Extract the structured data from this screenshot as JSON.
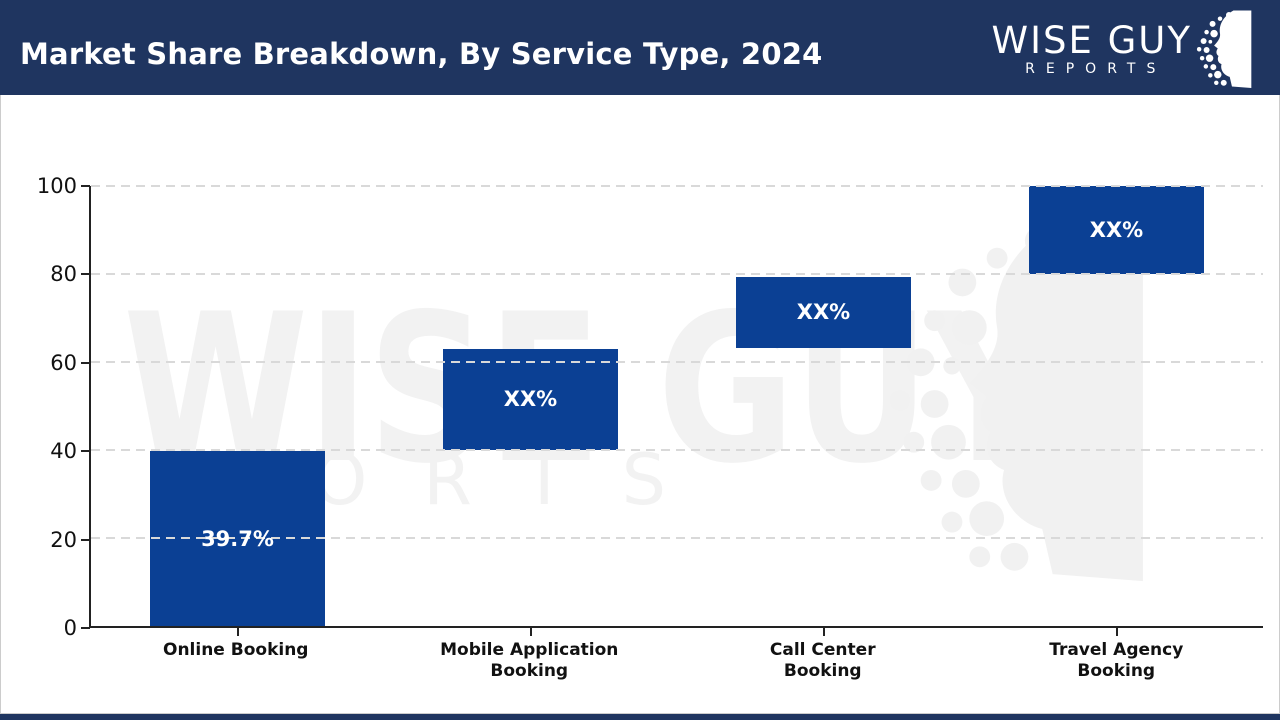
{
  "header": {
    "title": "Market Share Breakdown, By Service Type, 2024",
    "logo": {
      "name": "WISE GUY",
      "sub": "REPORTS"
    }
  },
  "watermark": {
    "big": "WISE GUY",
    "sub": "PORTS"
  },
  "chart_data": {
    "type": "bar",
    "subtype": "waterfall",
    "title": "Market Share Breakdown, By Service Type, 2024",
    "categories": [
      "Online Booking",
      "Mobile Application Booking",
      "Call Center Booking",
      "Travel Agency Booking"
    ],
    "category_lines": [
      [
        "Online Booking"
      ],
      [
        "Mobile Application",
        "Booking"
      ],
      [
        "Call Center",
        "Booking"
      ],
      [
        "Travel Agency",
        "Booking"
      ]
    ],
    "segments": [
      {
        "category": "Online Booking",
        "start": 0,
        "end": 39.7,
        "label": "39.7%"
      },
      {
        "category": "Mobile Application Booking",
        "start": 40,
        "end": 63,
        "label": "XX%"
      },
      {
        "category": "Call Center Booking",
        "start": 63.2,
        "end": 79.4,
        "label": "XX%"
      },
      {
        "category": "Travel Agency Booking",
        "start": 80,
        "end": 100,
        "label": "XX%"
      }
    ],
    "ylim": [
      0,
      100
    ],
    "yticks": [
      0,
      20,
      40,
      60,
      80,
      100
    ],
    "grid": true,
    "grid_style": "dashed",
    "legend_position": "none",
    "xlabel": "",
    "ylabel": "",
    "bar_color": "#0b4094",
    "bar_label_color": "#ffffff"
  },
  "colors": {
    "header_bg": "#1f3560",
    "bar": "#0b4094",
    "grid": "#d9d9d9",
    "axis": "#222222",
    "text": "#111111",
    "watermark": "#f2f2f2",
    "border": "#cccccc",
    "page_bg": "#ffffff"
  }
}
